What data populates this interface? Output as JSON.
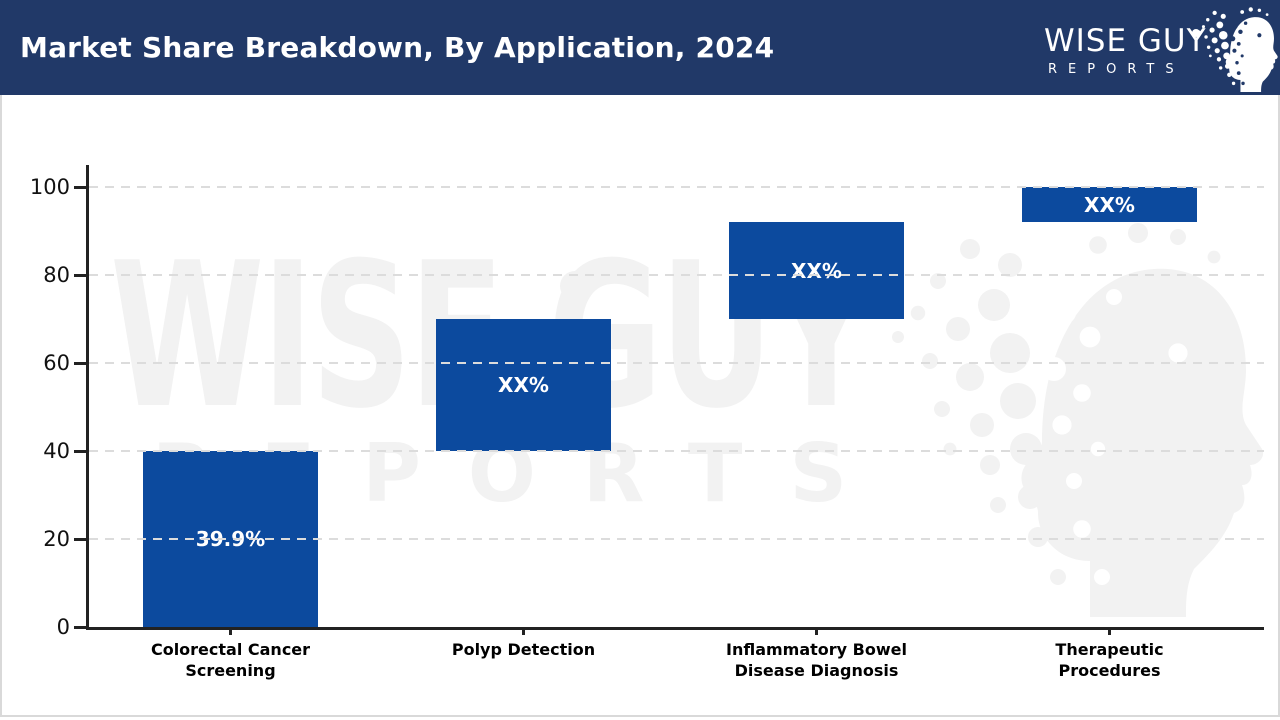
{
  "header": {
    "title": "Market Share Breakdown, By Application, 2024",
    "logo": {
      "name": "WISE GUY",
      "sub": "REPORTS"
    }
  },
  "watermark": {
    "name": "WISE GUY",
    "sub": "REPORTS"
  },
  "chart_data": {
    "type": "bar",
    "subtype": "floating-segment-waterfall",
    "title": "Market Share Breakdown, By Application, 2024",
    "categories": [
      "Colorectal Cancer\nScreening",
      "Polyp Detection",
      "Inflammatory Bowel\nDisease Diagnosis",
      "Therapeutic\nProcedures"
    ],
    "series": [
      {
        "name": "Market Share (%)",
        "segments": [
          {
            "category": "Colorectal Cancer Screening",
            "start": 0,
            "end": 39.9,
            "label": "39.9%"
          },
          {
            "category": "Polyp Detection",
            "start": 40,
            "end": 70,
            "label": "XX%"
          },
          {
            "category": "Inflammatory Bowel Disease Diagnosis",
            "start": 70,
            "end": 92,
            "label": "XX%"
          },
          {
            "category": "Therapeutic Procedures",
            "start": 92,
            "end": 100,
            "label": "XX%"
          }
        ]
      }
    ],
    "ylim": [
      0,
      100
    ],
    "yticks": [
      0,
      20,
      40,
      60,
      80,
      100
    ],
    "grid": "dashed-horizontal",
    "legend": "none",
    "colors": {
      "bar": "#0c4a9e",
      "bar_label": "#ffffff",
      "header_bg": "#213968",
      "axis": "#222222",
      "gridline": "#dcdcdc",
      "watermark": "#f2f2f2"
    }
  }
}
